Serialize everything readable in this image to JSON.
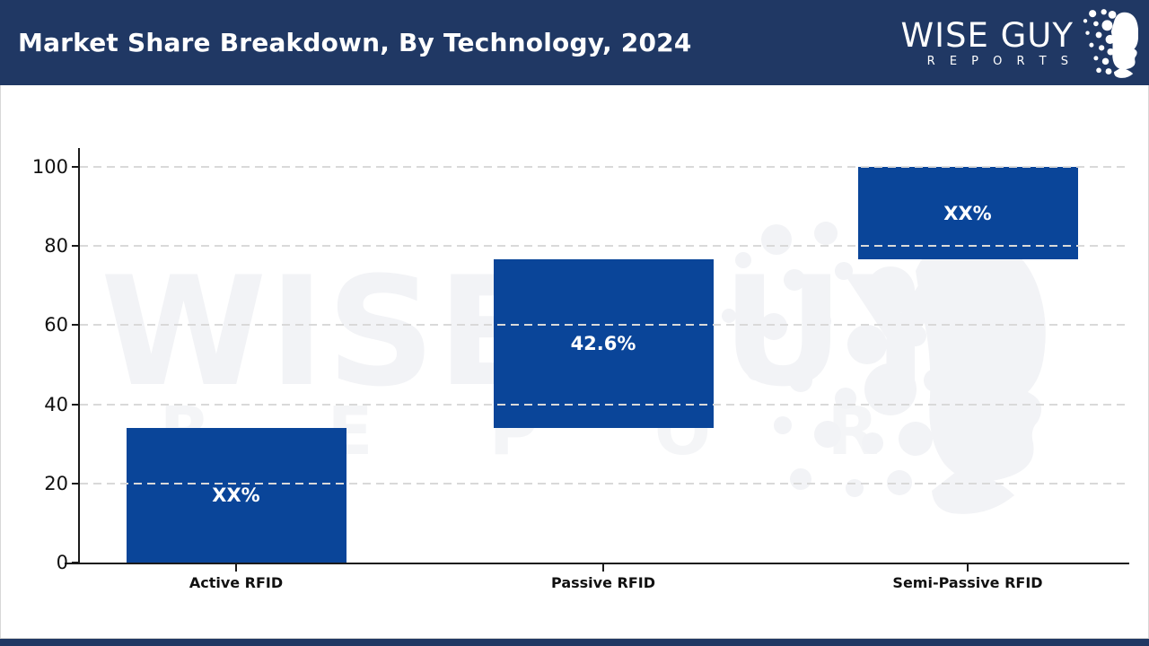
{
  "header": {
    "title": "Market Share Breakdown, By Technology, 2024",
    "logo": {
      "line1": "WISE GUY",
      "line2": "R E P O R T S"
    }
  },
  "watermark": {
    "line1": "WISE GUY",
    "line2": "R E P O R T S"
  },
  "chart_data": {
    "type": "bar",
    "subtype": "waterfall",
    "title": "Market Share Breakdown, By Technology, 2024",
    "categories": [
      "Active RFID",
      "Passive RFID",
      "Semi-Passive RFID"
    ],
    "segments": [
      {
        "category": "Active RFID",
        "base": 0,
        "top": 34,
        "label": "XX%"
      },
      {
        "category": "Passive RFID",
        "base": 34,
        "top": 76.6,
        "label": "42.6%"
      },
      {
        "category": "Semi-Passive RFID",
        "base": 76.6,
        "top": 100,
        "label": "XX%"
      }
    ],
    "ylim": [
      0,
      100
    ],
    "yticks": [
      0,
      20,
      40,
      60,
      80,
      100
    ],
    "xlabel": "",
    "ylabel": "",
    "grid": "dashed-horizontal",
    "legend": "none"
  },
  "colors": {
    "header_bg": "#203864",
    "footer_bg": "#203864",
    "bar": "#0a4599",
    "bar_label": "#ffffff",
    "grid": "#d9d9d9",
    "axis": "#1a1a1a",
    "watermark": "#f2f3f6"
  }
}
